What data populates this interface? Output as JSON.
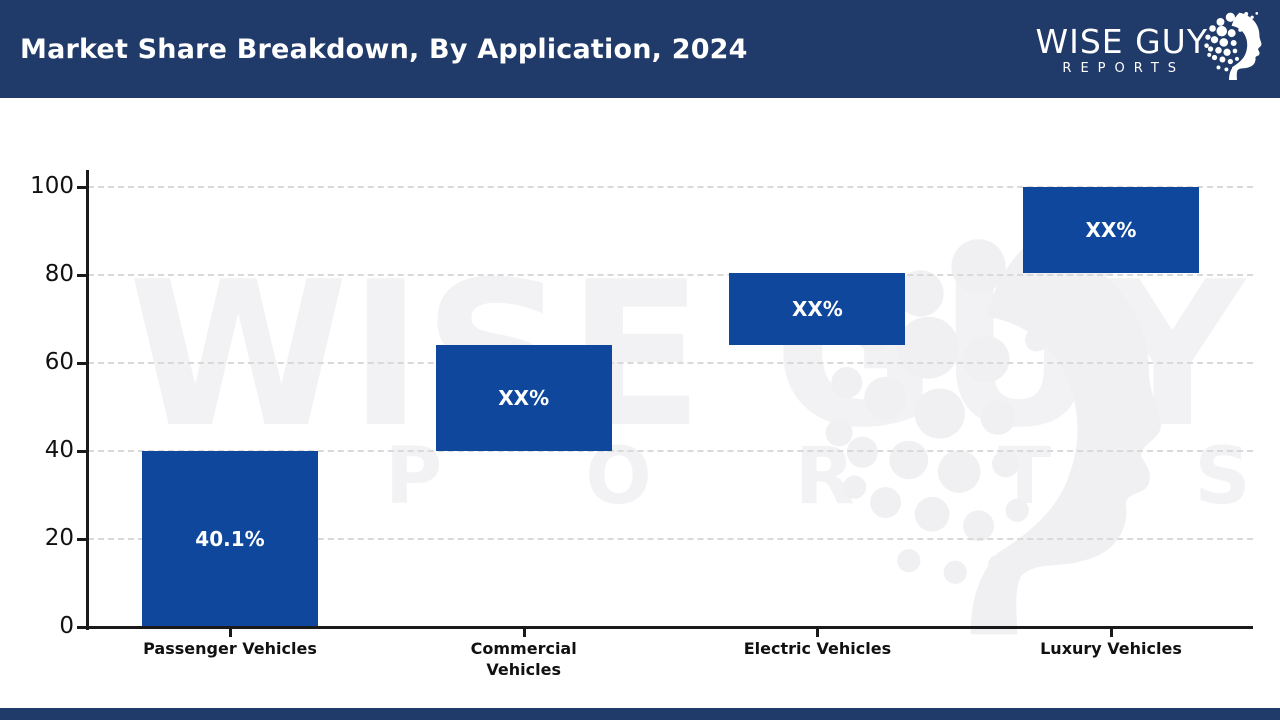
{
  "header": {
    "title": "Market Share Breakdown, By Application, 2024",
    "logo": {
      "name": "WISE GUY",
      "sub": "REPORTS",
      "icon": "dotted-head-icon"
    }
  },
  "watermark": {
    "line1": "WISE GUY",
    "line2": "P O R T S"
  },
  "chart_data": {
    "type": "bar",
    "variant": "waterfall",
    "title": "Market Share Breakdown, By Application, 2024",
    "categories": [
      "Passenger Vehicles",
      "Commercial\nVehicles",
      "Electric Vehicles",
      "Luxury Vehicles"
    ],
    "segments": [
      {
        "category": "Passenger Vehicles",
        "start": 0,
        "end": 40.1,
        "label": "40.1%"
      },
      {
        "category": "Commercial Vehicles",
        "start": 40.1,
        "end": 64,
        "label": "XX%"
      },
      {
        "category": "Electric Vehicles",
        "start": 64,
        "end": 80.4,
        "label": "XX%"
      },
      {
        "category": "Luxury Vehicles",
        "start": 80.4,
        "end": 100,
        "label": "XX%"
      }
    ],
    "y_ticks": [
      0,
      20,
      40,
      60,
      80,
      100
    ],
    "ylim": [
      0,
      103.8
    ],
    "xlabel": "",
    "ylabel": "",
    "grid": "horizontal-dashed",
    "legend": "none",
    "bar_color": "#0e479c",
    "value_label_color": "#ffffff"
  },
  "colors": {
    "header_bg": "#203a69",
    "footer_bg": "#203a69",
    "bar": "#0e479c",
    "gridline": "#d9d9d9",
    "axis": "#1a1a1a",
    "watermark": "#f2f2f4",
    "page_bg": "#ffffff"
  }
}
